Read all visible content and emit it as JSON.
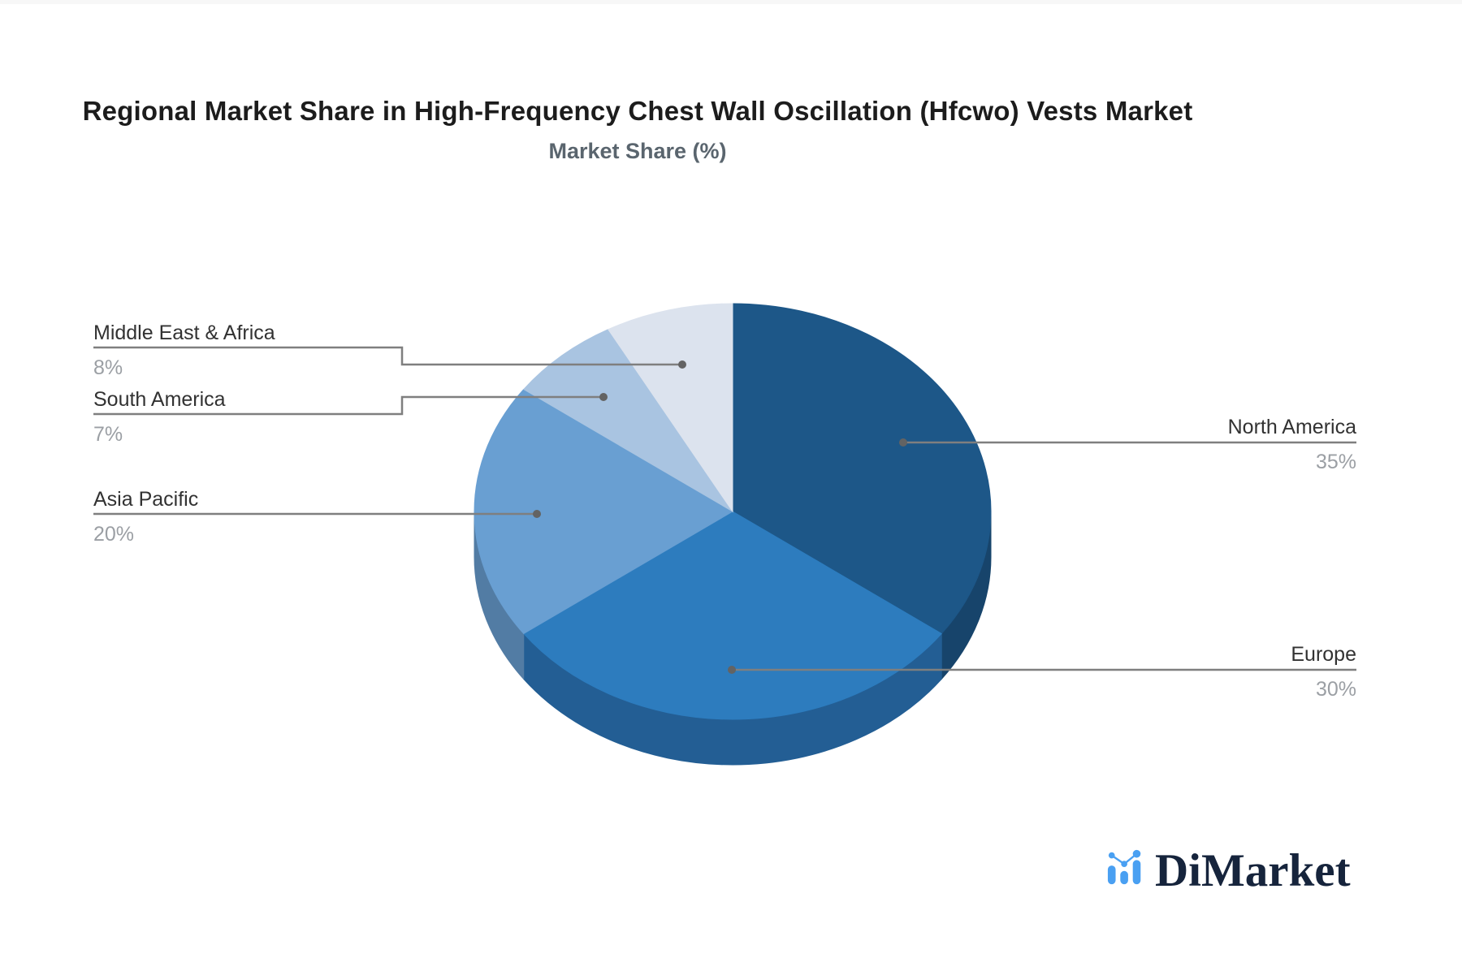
{
  "title": "Regional Market Share in High-Frequency Chest Wall Oscillation (Hfcwo) Vests Market",
  "subtitle": "Market Share (%)",
  "chart_data": {
    "type": "pie",
    "title": "Regional Market Share in High-Frequency Chest Wall Oscillation (Hfcwo) Vests Market",
    "subtitle": "Market Share (%)",
    "unit": "%",
    "effect_3d": true,
    "start_angle": "12 o'clock",
    "direction": "clockwise",
    "legend_position": "callout-labels",
    "slices": [
      {
        "label": "North America",
        "value": 35,
        "pct_label": "35%",
        "color": "#1D5788",
        "side_color": "#17446B",
        "label_side": "right"
      },
      {
        "label": "Europe",
        "value": 30,
        "pct_label": "30%",
        "color": "#2D7CBE",
        "side_color": "#235E94",
        "label_side": "right"
      },
      {
        "label": "Asia Pacific",
        "value": 20,
        "pct_label": "20%",
        "color": "#699FD2",
        "side_color": "#527CA4",
        "label_side": "left"
      },
      {
        "label": "South America",
        "value": 7,
        "pct_label": "7%",
        "color": "#A9C4E1",
        "side_color": "#8499B1",
        "label_side": "left"
      },
      {
        "label": "Middle East & Africa",
        "value": 8,
        "pct_label": "8%",
        "color": "#DCE3EE",
        "side_color": "#ABB5C6",
        "label_side": "left"
      }
    ]
  },
  "brand": {
    "name": "DiMarket",
    "icon": "bar-chart-icon",
    "icon_color": "#4AA0F2",
    "text_color": "#16243C"
  },
  "colors": {
    "background": "#FFFFFF",
    "leader_line": "#7F7F7F",
    "callout_dot": "#636363",
    "label_name": "#323232",
    "label_value": "#9B9FA4",
    "title": "#1C1C1C",
    "subtitle": "#5A656E"
  }
}
